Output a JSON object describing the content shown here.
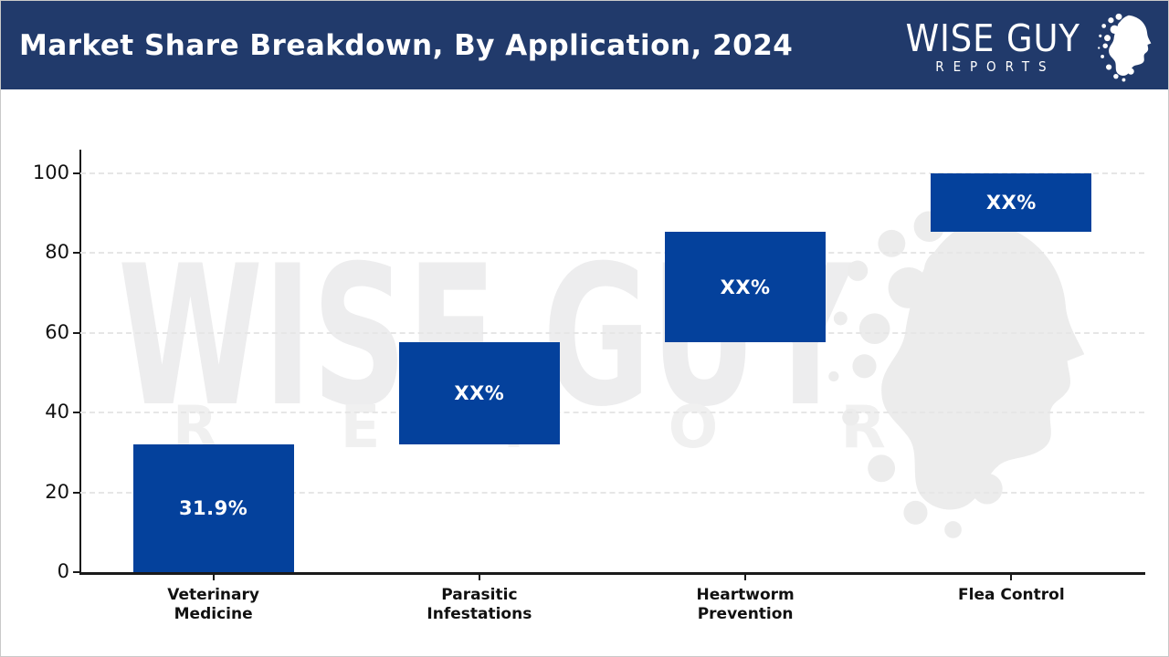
{
  "header": {
    "title": "Market Share Breakdown, By Application, 2024",
    "background_color": "#213a6b",
    "logo": {
      "wordmark": "WISE GUY",
      "subtext": "REPORTS"
    }
  },
  "watermark": {
    "line1": "WISE GUY",
    "line2": "R E P O R T S"
  },
  "chart_data": {
    "type": "bar",
    "subtype": "waterfall-stacked",
    "title": "Market Share Breakdown, By Application, 2024",
    "categories": [
      [
        "Veterinary",
        "Medicine"
      ],
      [
        "Parasitic",
        "Infestations"
      ],
      [
        "Heartworm",
        "Prevention"
      ],
      [
        "Flea Control"
      ]
    ],
    "segments": [
      {
        "label": "31.9%",
        "start": 0,
        "end": 31.9
      },
      {
        "label": "XX%",
        "start": 31.9,
        "end": 57.6
      },
      {
        "label": "XX%",
        "start": 57.6,
        "end": 85.2
      },
      {
        "label": "XX%",
        "start": 85.2,
        "end": 100
      }
    ],
    "yticks": [
      0,
      20,
      40,
      60,
      80,
      100
    ],
    "ylim": [
      0,
      105
    ],
    "xlabel": "",
    "ylabel": "",
    "bar_color": "#04419c",
    "grid": {
      "axis": "y",
      "style": "dashed",
      "color": "#e6e6e6"
    },
    "legend_position": "none"
  }
}
